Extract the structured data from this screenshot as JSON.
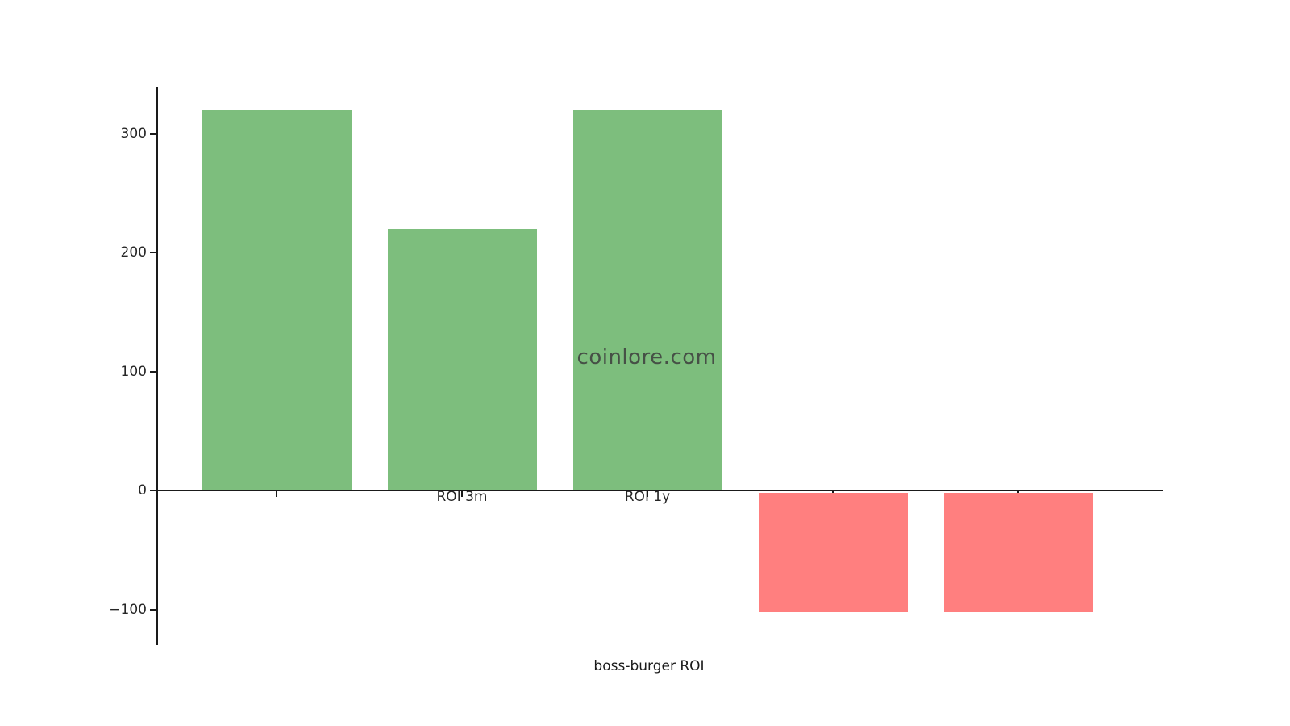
{
  "page": {
    "background": "#ffffff"
  },
  "chart_data": {
    "type": "bar",
    "categories": [
      "",
      "ROI 3m",
      "ROI 1y",
      "",
      ""
    ],
    "values": [
      320,
      220,
      320,
      -100,
      -100
    ],
    "title": "",
    "xlabel": "boss-burger ROI",
    "ylabel": "",
    "yticks": [
      -100,
      0,
      100,
      200,
      300
    ],
    "ylim": [
      -130,
      340
    ],
    "grid": false,
    "legend": "none",
    "bar_colors": {
      "positive": "#7dbe7d",
      "negative": "#ff7f7f"
    },
    "axis_color": "#1a1a1a",
    "tick_label_color": "#262626",
    "watermark": {
      "text": "coinlore.com",
      "color": "#3d3d3d"
    }
  }
}
